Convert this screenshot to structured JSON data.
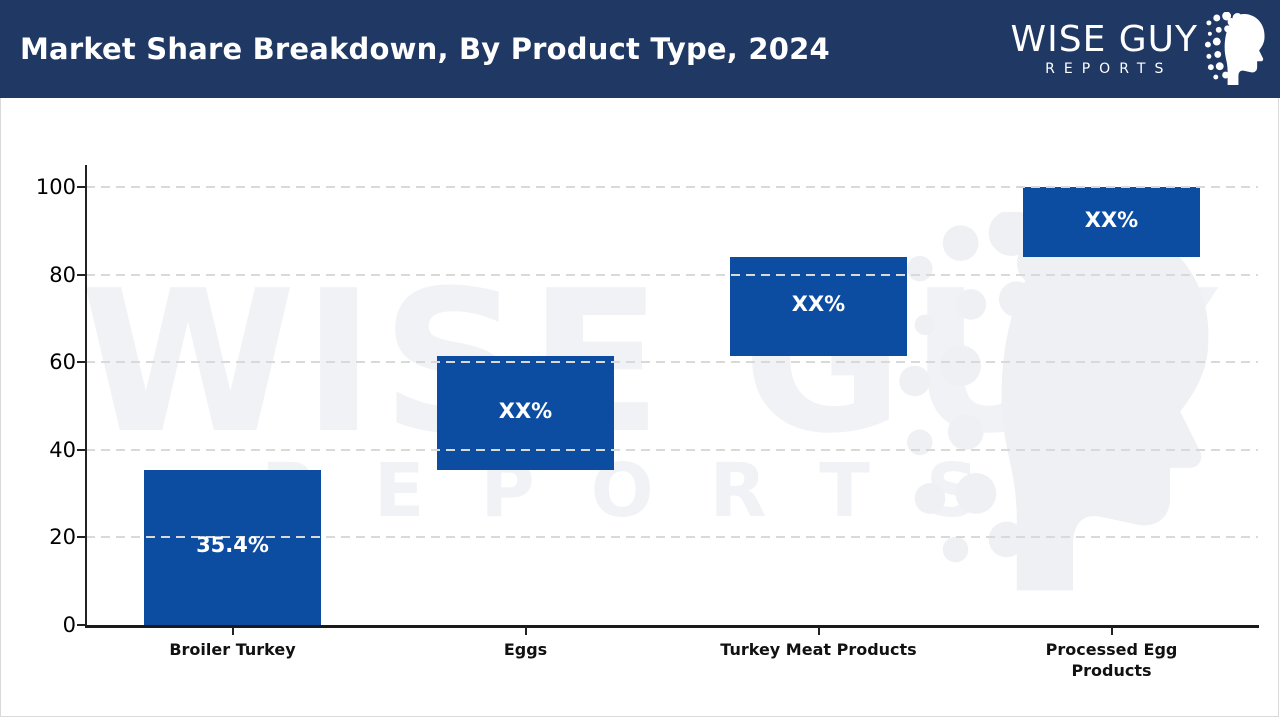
{
  "header": {
    "title": "Market Share Breakdown, By Product Type, 2024",
    "logo": {
      "line1": "WISE GUY",
      "line2": "REPORTS"
    }
  },
  "watermark": {
    "line1": "WISE GUY",
    "line2": "REPORTS"
  },
  "colors": {
    "header_bg": "#203864",
    "bar": "#0c4da2",
    "grid": "#d9d9d9",
    "axis": "#222222",
    "bar_label": "#ffffff",
    "watermark": "#f1f2f5"
  },
  "chart_data": {
    "type": "bar",
    "subtype": "waterfall",
    "title": "Market Share Breakdown, By Product Type, 2024",
    "categories": [
      "Broiler Turkey",
      "Eggs",
      "Turkey Meat Products",
      "Processed Egg Products"
    ],
    "segments": [
      {
        "category": "Broiler Turkey",
        "base": 0,
        "top": 35.4,
        "label": "35.4%"
      },
      {
        "category": "Eggs",
        "base": 35.4,
        "top": 61.5,
        "label": "XX%"
      },
      {
        "category": "Turkey Meat Products",
        "base": 61.5,
        "top": 84.0,
        "label": "XX%"
      },
      {
        "category": "Processed Egg Products",
        "base": 84.0,
        "top": 100,
        "label": "XX%"
      }
    ],
    "y_ticks": [
      0,
      20,
      40,
      60,
      80,
      100
    ],
    "ylim": [
      0,
      103.5
    ],
    "xlabel": "",
    "ylabel": "",
    "grid": "horizontal-dashed-over-bars",
    "legend": "none"
  }
}
